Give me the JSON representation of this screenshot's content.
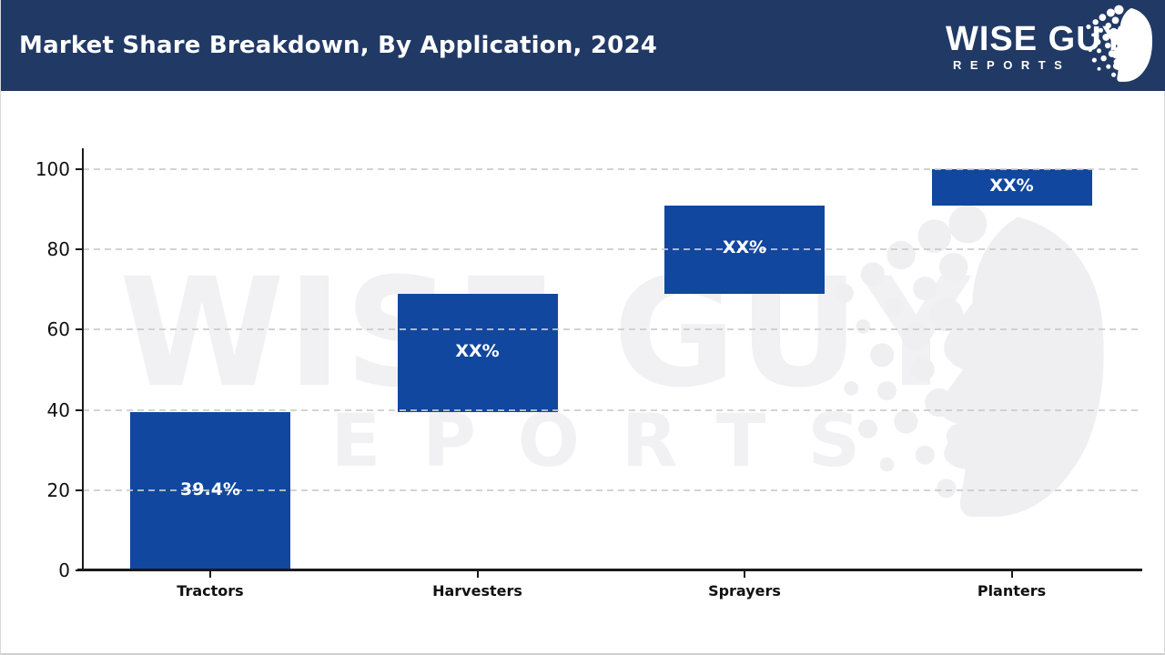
{
  "header": {
    "title": "Market Share Breakdown, By Application, 2024",
    "logo": {
      "line1": "WISE GUY",
      "line2": "REPORTS"
    }
  },
  "watermark": {
    "line1": "WISE GUY",
    "line2": "REPORTS"
  },
  "theme": {
    "header_bg": "#213965",
    "bar_color": "#11479e",
    "bar_label_color": "#ffffff",
    "axis_color": "#1a1a1a",
    "grid_color": "#cbcbce",
    "watermark_color": "#f1f1f3"
  },
  "chart_data": {
    "type": "bar",
    "subtype": "waterfall",
    "title": "Market Share Breakdown, By Application, 2024",
    "categories": [
      "Tractors",
      "Harvesters",
      "Sprayers",
      "Planters"
    ],
    "segments": [
      {
        "category": "Tractors",
        "start": 0,
        "end": 39.4,
        "label": "39.4%"
      },
      {
        "category": "Harvesters",
        "start": 39.4,
        "end": 69,
        "label": "XX%"
      },
      {
        "category": "Sprayers",
        "start": 69,
        "end": 91,
        "label": "XX%"
      },
      {
        "category": "Planters",
        "start": 91,
        "end": 100,
        "label": "XX%"
      }
    ],
    "yticks": [
      0,
      20,
      40,
      60,
      80,
      100
    ],
    "ylim": [
      0,
      105
    ],
    "xlabel": "",
    "ylabel": "",
    "grid": "dashed-horizontal-over-bars",
    "legend": "none"
  }
}
